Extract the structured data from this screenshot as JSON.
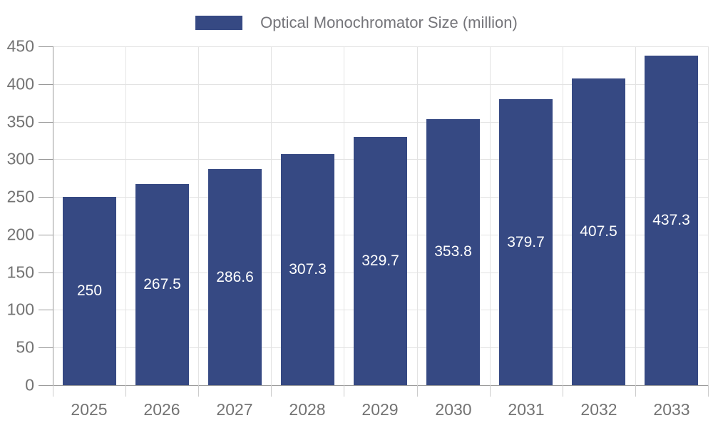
{
  "legend": {
    "label": "Optical Monochromator Size (million)"
  },
  "chart_data": {
    "type": "bar",
    "title": "",
    "xlabel": "",
    "ylabel": "",
    "series_name": "Optical Monochromator Size (million)",
    "categories": [
      "2025",
      "2026",
      "2027",
      "2028",
      "2029",
      "2030",
      "2031",
      "2032",
      "2033"
    ],
    "values": [
      250,
      267.5,
      286.6,
      307.3,
      329.7,
      353.8,
      379.7,
      407.5,
      437.3
    ],
    "value_labels": [
      "250",
      "267.5",
      "286.6",
      "307.3",
      "329.7",
      "353.8",
      "379.7",
      "407.5",
      "437.3"
    ],
    "ylim": [
      0,
      450
    ],
    "ytick_step": 50,
    "yticks": [
      0,
      50,
      100,
      150,
      200,
      250,
      300,
      350,
      400,
      450
    ],
    "grid": true,
    "legend_position": "top-center",
    "colors": {
      "bar": "#364983",
      "value_label": "#ffffff",
      "axis_line": "#9a9a9a",
      "y_tick": "#9a9a9a",
      "x_tick": "#cccccc",
      "gridline": "#e3e3e3",
      "axis_label": "#737373",
      "legend_text": "#75757a",
      "background": "#ffffff"
    }
  }
}
